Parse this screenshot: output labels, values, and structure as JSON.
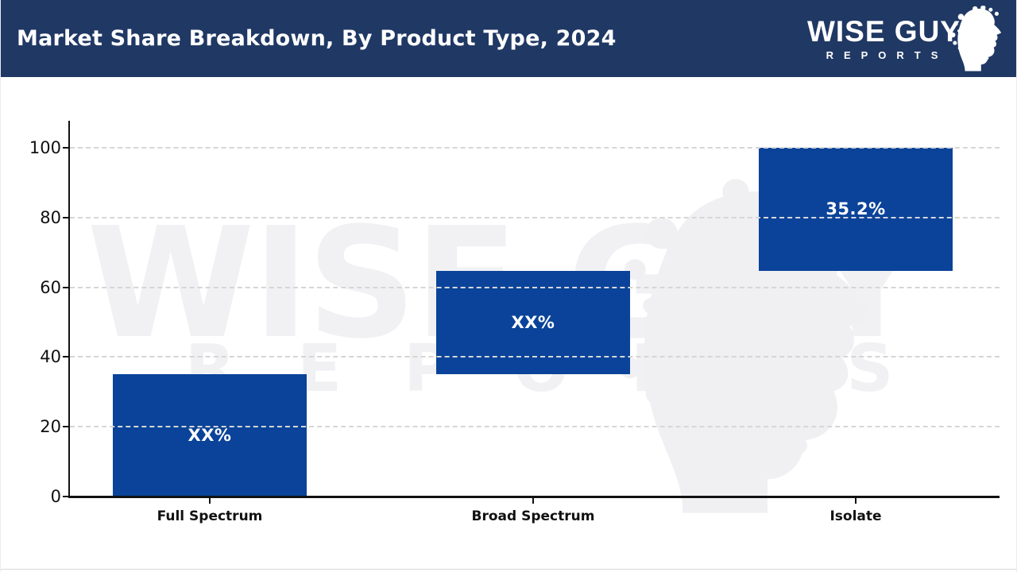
{
  "header": {
    "title": "Market Share Breakdown, By Product Type, 2024",
    "logo": {
      "line1": "WISE GUY",
      "line2": "REPORTS"
    }
  },
  "watermark": {
    "line1": "WISE GUY",
    "line2": "REPORTS"
  },
  "chart_data": {
    "type": "bar",
    "variant": "floating-waterfall",
    "title": "Market Share Breakdown, By Product Type, 2024",
    "categories": [
      "Full Spectrum",
      "Broad Spectrum",
      "Isolate"
    ],
    "bars": [
      {
        "category": "Full Spectrum",
        "start": 0,
        "end": 35,
        "label": "XX%"
      },
      {
        "category": "Broad Spectrum",
        "start": 35,
        "end": 64.8,
        "label": "XX%"
      },
      {
        "category": "Isolate",
        "start": 64.8,
        "end": 100,
        "label": "35.2%"
      }
    ],
    "xlabel": "",
    "ylabel": "",
    "ylim": [
      0,
      107.5
    ],
    "yticks": [
      0,
      20,
      40,
      60,
      80,
      100
    ],
    "grid": {
      "horizontal": true,
      "style": "dashed"
    },
    "legend": false,
    "bar_color": "#0a4399",
    "bar_label_color": "#ffffff",
    "grid_color": "#d6d6d6",
    "axis_color": "#111111",
    "header_bg_color": "#203864"
  }
}
